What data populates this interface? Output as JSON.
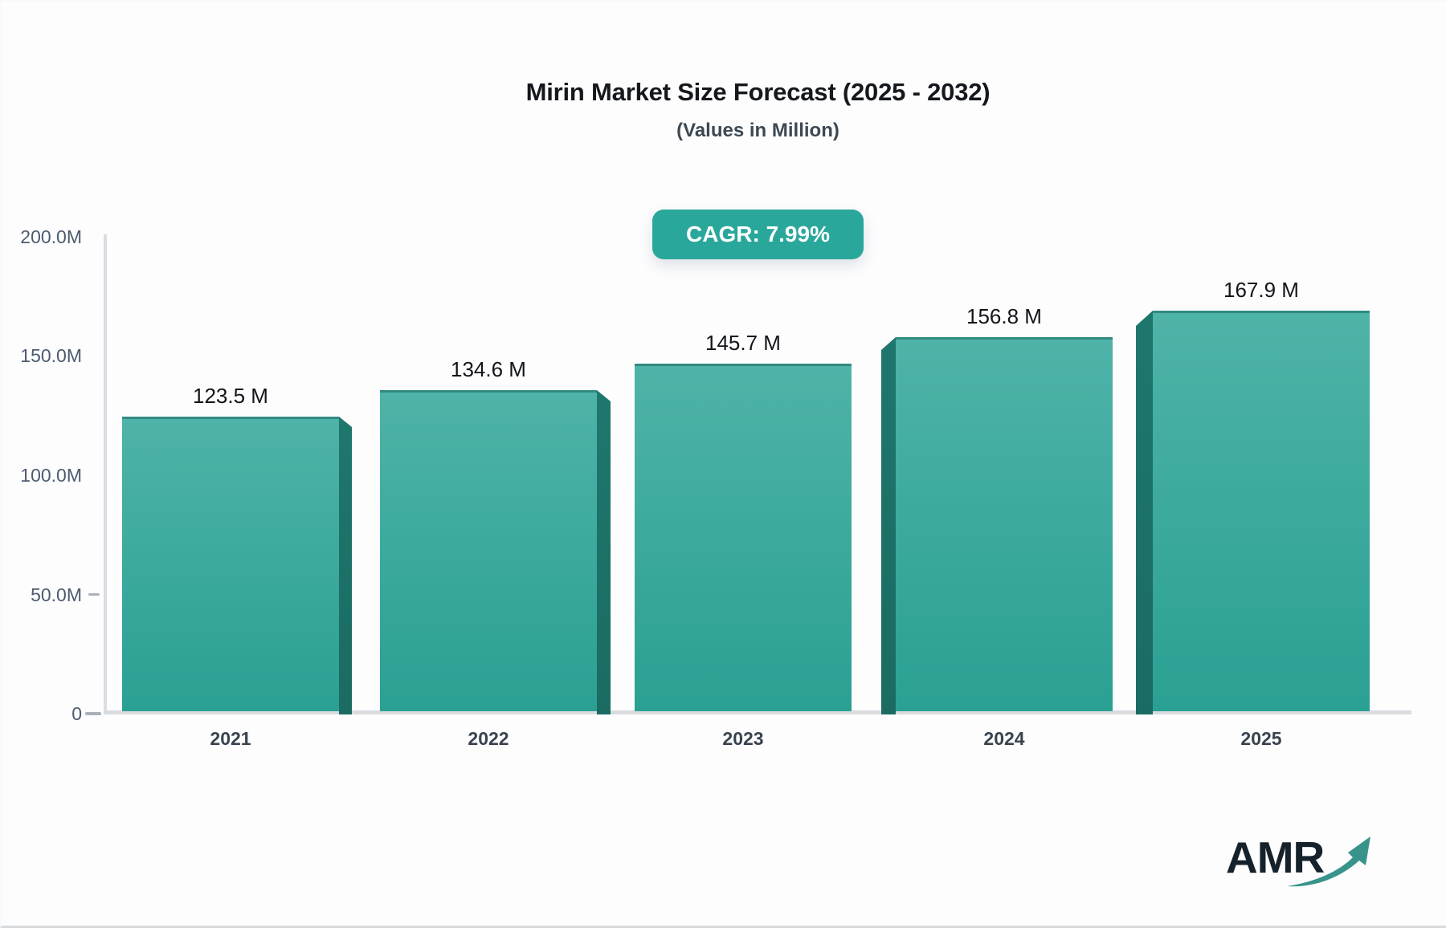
{
  "page": {
    "background": "#fdfdfe"
  },
  "header": {
    "title": "Mirin Market Size Forecast (2025 - 2032)",
    "subtitle": "(Values in Million)",
    "cagr_badge": "CAGR: 7.99%",
    "badge_color": "#2aa79b"
  },
  "chart_data": {
    "type": "bar",
    "title": "Mirin Market Size Forecast (2025 - 2032)",
    "subtitle": "(Values in Million)",
    "unit": "Million",
    "cagr": "7.99%",
    "categories": [
      "2021",
      "2022",
      "2023",
      "2024",
      "2025"
    ],
    "values": [
      123.5,
      134.6,
      145.7,
      156.8,
      167.9
    ],
    "data_labels": [
      "123.5 M",
      "134.6 M",
      "145.7 M",
      "156.8 M",
      "167.9 M"
    ],
    "ylim": [
      0,
      200
    ],
    "y_ticks": [
      {
        "label": "200.0M",
        "value": 200,
        "dash": false
      },
      {
        "label": "150.0M",
        "value": 150,
        "dash": false
      },
      {
        "label": "100.0M",
        "value": 100,
        "dash": false
      },
      {
        "label": "50.0M",
        "value": 50,
        "dash": true
      },
      {
        "label": "0",
        "value": 0,
        "dash": true
      }
    ],
    "grid": false,
    "legend": false,
    "bar_color_top": "#4fb3a8",
    "bar_color_bottom": "#2aa093",
    "bar_side_color": "#1e776d",
    "axis_color": "#d9dbdf"
  },
  "logo": {
    "text": "AMR"
  }
}
